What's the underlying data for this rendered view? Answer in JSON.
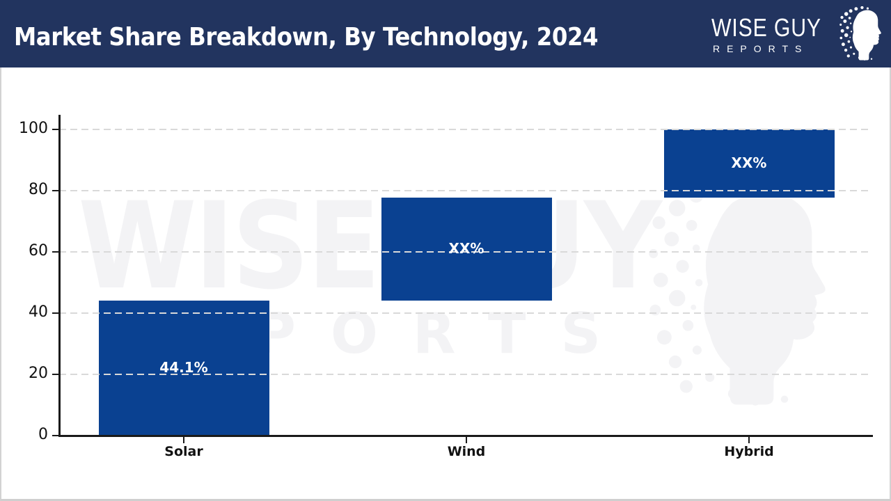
{
  "header": {
    "title": "Market Share Breakdown, By Technology, 2024",
    "bg_color": "#22345f",
    "logo": {
      "brand_top": "WISE GUY",
      "brand_bottom": "REPORTS"
    }
  },
  "watermark": {
    "brand_top": "WISE GUY",
    "brand_bottom": "REPORTS"
  },
  "chart_data": {
    "type": "bar",
    "subtype": "waterfall",
    "title": "Market Share Breakdown, By Technology, 2024",
    "categories": [
      "Solar",
      "Wind",
      "Hybrid"
    ],
    "bars": [
      {
        "category": "Solar",
        "label": "44.1%",
        "start": 0,
        "end": 44.1
      },
      {
        "category": "Wind",
        "label": "XX%",
        "start": 44.1,
        "end": 77.7
      },
      {
        "category": "Hybrid",
        "label": "XX%",
        "start": 77.7,
        "end": 100
      }
    ],
    "yticks": [
      0,
      20,
      40,
      60,
      80,
      100
    ],
    "ylim": [
      0,
      105
    ],
    "xlabel": "",
    "ylabel": "",
    "grid": "horizontal-dashed",
    "legend": "none",
    "bar_color": "#0a4191",
    "bar_label_color": "#ffffff",
    "axis_color": "#1a1a1a",
    "gridline_color": "#d9d9d9"
  }
}
